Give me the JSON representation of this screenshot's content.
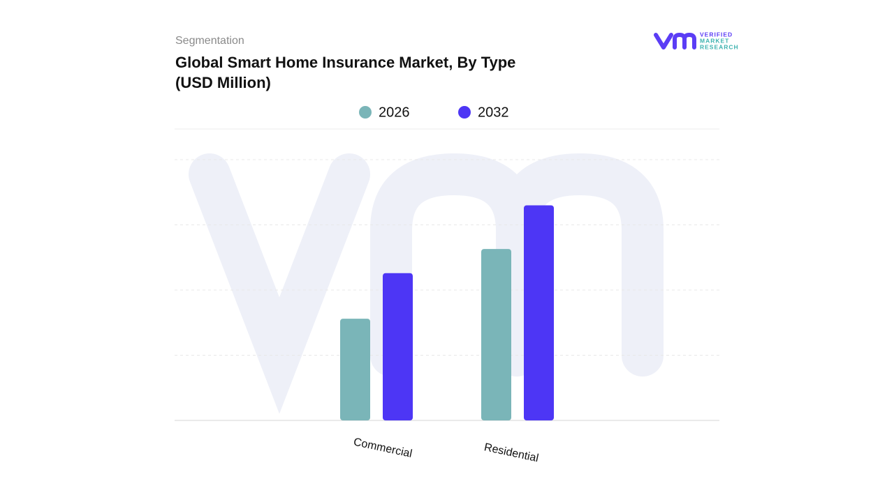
{
  "chart_data": {
    "type": "bar",
    "subtitle": "Segmentation",
    "title": "Global Smart Home Insurance Market, By Type (USD Million)",
    "categories": [
      "Commercial",
      "Residential"
    ],
    "series": [
      {
        "name": "2026",
        "color": "#7ab5b8",
        "values": [
          1.56,
          2.63
        ]
      },
      {
        "name": "2032",
        "color": "#4d36f5",
        "values": [
          2.26,
          3.3
        ]
      }
    ],
    "ylim": [
      0,
      4
    ],
    "yticks": [
      0,
      1,
      2,
      3,
      4
    ],
    "show_tick_labels": false,
    "grid": true,
    "legend": "top",
    "logo": [
      "VERIFIED",
      "MARKET",
      "RESEARCH"
    ]
  }
}
